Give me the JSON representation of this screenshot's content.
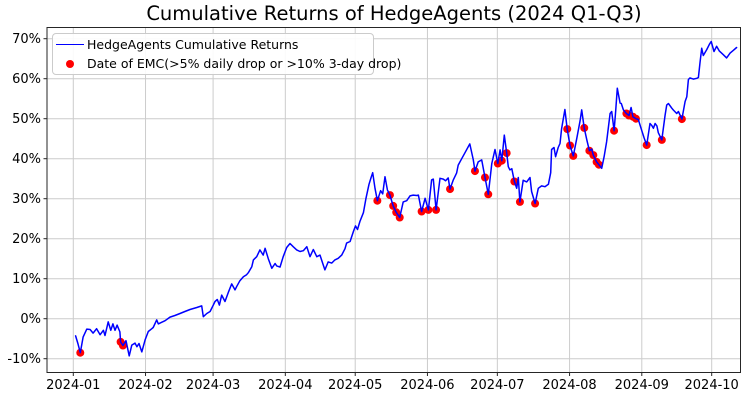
{
  "title": "Cumulative Returns of HedgeAgents (2024 Q1-Q3)",
  "legend": {
    "items": [
      {
        "label": "HedgeAgents Cumulative Returns",
        "type": "line",
        "color": "#0000ff"
      },
      {
        "label": "Date of EMC(>5% daily drop or >10% 3-day drop)",
        "type": "dot",
        "color": "#ff0000"
      }
    ]
  },
  "colors": {
    "line": "#0000ff",
    "marker": "#ff0000",
    "grid": "#cccccc",
    "spine": "#262626",
    "text": "#000000"
  },
  "chart_data": {
    "type": "line",
    "title": "Cumulative Returns of HedgeAgents (2024 Q1-Q3)",
    "x_unit": "days since 2024-01-01",
    "y_unit": "percent",
    "grid": true,
    "legend_position": "upper left",
    "ylim": [
      -13.5,
      72.8
    ],
    "x_ticks": [
      {
        "label": "2024-01",
        "day": 0
      },
      {
        "label": "2024-02",
        "day": 31
      },
      {
        "label": "2024-03",
        "day": 60
      },
      {
        "label": "2024-04",
        "day": 91
      },
      {
        "label": "2024-05",
        "day": 121
      },
      {
        "label": "2024-06",
        "day": 152
      },
      {
        "label": "2024-07",
        "day": 182
      },
      {
        "label": "2024-08",
        "day": 213
      },
      {
        "label": "2024-09",
        "day": 244
      },
      {
        "label": "2024-10",
        "day": 274
      }
    ],
    "y_ticks": [
      {
        "label": "-10%",
        "value": -10
      },
      {
        "label": "0%",
        "value": 0
      },
      {
        "label": "10%",
        "value": 10
      },
      {
        "label": "20%",
        "value": 20
      },
      {
        "label": "30%",
        "value": 30
      },
      {
        "label": "40%",
        "value": 40
      },
      {
        "label": "50%",
        "value": 50
      },
      {
        "label": "60%",
        "value": 60
      },
      {
        "label": "70%",
        "value": 70
      }
    ],
    "series": [
      {
        "name": "HedgeAgents Cumulative Returns",
        "color": "#0000ff",
        "points": [
          [
            1,
            -4.3
          ],
          [
            2,
            -6.3
          ],
          [
            3,
            -8.5
          ],
          [
            4.2,
            -4.6
          ],
          [
            5.8,
            -2.6
          ],
          [
            7.2,
            -2.7
          ],
          [
            8.5,
            -3.6
          ],
          [
            10,
            -2.5
          ],
          [
            11.5,
            -4.0
          ],
          [
            12.9,
            -2.9
          ],
          [
            13.6,
            -4.2
          ],
          [
            15,
            -0.8
          ],
          [
            16.1,
            -2.9
          ],
          [
            17,
            -1.3
          ],
          [
            17.9,
            -2.9
          ],
          [
            18.8,
            -1.6
          ],
          [
            20,
            -3.3
          ],
          [
            20.3,
            -5.8
          ],
          [
            21.3,
            -6.7
          ],
          [
            22.6,
            -5.5
          ],
          [
            24,
            -9.3
          ],
          [
            25.1,
            -6.6
          ],
          [
            26.5,
            -6.1
          ],
          [
            27.3,
            -7.0
          ],
          [
            28.2,
            -6.2
          ],
          [
            29.4,
            -8.3
          ],
          [
            30.8,
            -5.3
          ],
          [
            32.2,
            -3.2
          ],
          [
            33.7,
            -2.5
          ],
          [
            34.3,
            -2.2
          ],
          [
            35.8,
            -0.3
          ],
          [
            36.5,
            -1.3
          ],
          [
            37.9,
            -0.9
          ],
          [
            39.4,
            -0.5
          ],
          [
            41.5,
            0.4
          ],
          [
            43.6,
            0.8
          ],
          [
            45.8,
            1.3
          ],
          [
            47.9,
            1.8
          ],
          [
            50.1,
            2.3
          ],
          [
            53,
            2.8
          ],
          [
            55.1,
            3.2
          ],
          [
            55.8,
            0.5
          ],
          [
            57.3,
            1.3
          ],
          [
            58.7,
            1.8
          ],
          [
            60.1,
            3.4
          ],
          [
            60.8,
            4.3
          ],
          [
            61.8,
            4.8
          ],
          [
            62.7,
            3.4
          ],
          [
            63.7,
            5.9
          ],
          [
            65.1,
            4.3
          ],
          [
            66.5,
            6.5
          ],
          [
            68,
            8.7
          ],
          [
            69.4,
            7.2
          ],
          [
            70.1,
            8.0
          ],
          [
            71.5,
            9.5
          ],
          [
            73,
            10.5
          ],
          [
            74.4,
            11.0
          ],
          [
            75.1,
            11.5
          ],
          [
            76.6,
            13.0
          ],
          [
            77.3,
            14.7
          ],
          [
            78.7,
            15.5
          ],
          [
            80.1,
            17.2
          ],
          [
            81.5,
            15.9
          ],
          [
            82.3,
            17.6
          ],
          [
            83.7,
            15.0
          ],
          [
            85.2,
            12.6
          ],
          [
            86.6,
            13.8
          ],
          [
            87.3,
            13.2
          ],
          [
            88.7,
            12.9
          ],
          [
            90.1,
            15.5
          ],
          [
            91.6,
            17.8
          ],
          [
            93,
            18.8
          ],
          [
            94.4,
            18.0
          ],
          [
            95.9,
            17.2
          ],
          [
            97.3,
            16.8
          ],
          [
            98.7,
            17.0
          ],
          [
            100.2,
            18.0
          ],
          [
            101.6,
            15.5
          ],
          [
            103,
            17.3
          ],
          [
            104.5,
            15.5
          ],
          [
            105.9,
            15.9
          ],
          [
            107.3,
            13.4
          ],
          [
            108,
            12.2
          ],
          [
            109.4,
            14.2
          ],
          [
            110.9,
            13.9
          ],
          [
            112.3,
            14.7
          ],
          [
            113.7,
            15.1
          ],
          [
            115.2,
            15.9
          ],
          [
            116.6,
            17.5
          ],
          [
            117.3,
            18.9
          ],
          [
            118.8,
            19.3
          ],
          [
            120.2,
            21.8
          ],
          [
            121.1,
            23.2
          ],
          [
            122,
            22.3
          ],
          [
            123,
            24.3
          ],
          [
            124.5,
            26.5
          ],
          [
            125.6,
            30.0
          ],
          [
            126.9,
            33.6
          ],
          [
            127.8,
            35.3
          ],
          [
            128.5,
            36.5
          ],
          [
            129.5,
            32.6
          ],
          [
            130.5,
            29.5
          ],
          [
            131.9,
            32.0
          ],
          [
            132.8,
            31.2
          ],
          [
            133.8,
            35.5
          ],
          [
            134.8,
            32.2
          ],
          [
            135.9,
            30.9
          ],
          [
            137.3,
            28.2
          ],
          [
            138.6,
            26.6
          ],
          [
            140.1,
            25.3
          ],
          [
            141.6,
            29.2
          ],
          [
            143.1,
            29.5
          ],
          [
            144.5,
            30.7
          ],
          [
            145.9,
            30.9
          ],
          [
            147.4,
            30.8
          ],
          [
            148.1,
            30.9
          ],
          [
            149.5,
            26.8
          ],
          [
            151,
            30.1
          ],
          [
            152.4,
            27.2
          ],
          [
            153.8,
            34.7
          ],
          [
            154.5,
            34.9
          ],
          [
            155.7,
            27.2
          ],
          [
            157.4,
            35.1
          ],
          [
            158.8,
            34.9
          ],
          [
            159.8,
            34.5
          ],
          [
            160.9,
            35.2
          ],
          [
            161.7,
            32.4
          ],
          [
            163.1,
            34.7
          ],
          [
            164.5,
            36.4
          ],
          [
            165.2,
            38.4
          ],
          [
            166.7,
            40.0
          ],
          [
            168.1,
            41.5
          ],
          [
            170.2,
            43.7
          ],
          [
            171.7,
            39.7
          ],
          [
            172.4,
            36.9
          ],
          [
            173.8,
            39.2
          ],
          [
            175.3,
            39.7
          ],
          [
            176.7,
            35.3
          ],
          [
            178.1,
            31.1
          ],
          [
            179.6,
            38.8
          ],
          [
            181,
            42.3
          ],
          [
            182.2,
            38.8
          ],
          [
            183.2,
            42.2
          ],
          [
            183.9,
            39.5
          ],
          [
            185,
            45.9
          ],
          [
            186,
            41.4
          ],
          [
            186.7,
            38.0
          ],
          [
            187.4,
            37.2
          ],
          [
            188.2,
            37.5
          ],
          [
            189.3,
            34.3
          ],
          [
            190.3,
            32.6
          ],
          [
            191,
            35.3
          ],
          [
            191.7,
            29.2
          ],
          [
            193.1,
            34.6
          ],
          [
            194.6,
            34.2
          ],
          [
            196,
            35.3
          ],
          [
            196.7,
            31.8
          ],
          [
            198.2,
            28.8
          ],
          [
            199.6,
            32.6
          ],
          [
            201,
            33.2
          ],
          [
            202.4,
            33.0
          ],
          [
            203.9,
            33.6
          ],
          [
            204.9,
            36.5
          ],
          [
            205.3,
            42.3
          ],
          [
            206.3,
            42.8
          ],
          [
            207,
            40.5
          ],
          [
            208.1,
            42.8
          ],
          [
            208.9,
            43.8
          ],
          [
            209.6,
            47.5
          ],
          [
            211,
            52.3
          ],
          [
            212,
            47.4
          ],
          [
            213.2,
            43.3
          ],
          [
            214.6,
            40.7
          ],
          [
            216.1,
            45.1
          ],
          [
            217.5,
            49.5
          ],
          [
            218.2,
            52.2
          ],
          [
            219.3,
            47.7
          ],
          [
            220.5,
            44.5
          ],
          [
            221.5,
            42.0
          ],
          [
            222.5,
            42.4
          ],
          [
            223.2,
            40.9
          ],
          [
            224.6,
            39.2
          ],
          [
            225.6,
            38.5
          ],
          [
            226.8,
            37.6
          ],
          [
            227.8,
            40.5
          ],
          [
            228.9,
            44.2
          ],
          [
            230.4,
            51.3
          ],
          [
            231.1,
            51.8
          ],
          [
            232.1,
            47.0
          ],
          [
            232.8,
            52.0
          ],
          [
            233.5,
            57.6
          ],
          [
            234.7,
            53.9
          ],
          [
            235.2,
            53.8
          ],
          [
            236.1,
            52.2
          ],
          [
            237.4,
            51.3
          ],
          [
            238.5,
            50.8
          ],
          [
            239.4,
            52.8
          ],
          [
            240.2,
            50.5
          ],
          [
            241.5,
            50.0
          ],
          [
            242.5,
            49.8
          ],
          [
            244,
            47.0
          ],
          [
            245,
            45.2
          ],
          [
            246.1,
            43.4
          ],
          [
            247.5,
            48.8
          ],
          [
            248.3,
            48.3
          ],
          [
            249,
            47.6
          ],
          [
            249.7,
            48.8
          ],
          [
            250.5,
            48.2
          ],
          [
            251.1,
            46.5
          ],
          [
            252.6,
            44.7
          ],
          [
            254,
            50.9
          ],
          [
            254.7,
            53.4
          ],
          [
            255.4,
            53.8
          ],
          [
            256.9,
            52.6
          ],
          [
            257.5,
            52.2
          ],
          [
            259,
            51.3
          ],
          [
            259.7,
            51.8
          ],
          [
            261.2,
            49.9
          ],
          [
            262.6,
            54.3
          ],
          [
            263.3,
            55.5
          ],
          [
            264,
            59.8
          ],
          [
            264.7,
            60.2
          ],
          [
            266.1,
            59.9
          ],
          [
            267.6,
            60.1
          ],
          [
            268.3,
            60.3
          ],
          [
            269,
            64.0
          ],
          [
            269.7,
            67.6
          ],
          [
            270.4,
            65.8
          ],
          [
            271.9,
            67.3
          ],
          [
            273,
            68.6
          ],
          [
            273.8,
            69.3
          ],
          [
            275,
            66.8
          ],
          [
            276.1,
            68.1
          ],
          [
            277.3,
            66.9
          ],
          [
            279,
            66.0
          ],
          [
            280.4,
            65.2
          ],
          [
            281.9,
            66.4
          ],
          [
            283.3,
            67.1
          ],
          [
            284.7,
            67.8
          ]
        ]
      }
    ],
    "markers": {
      "name": "Date of EMC(>5% daily drop or >10% 3-day drop)",
      "color": "#ff0000",
      "points": [
        [
          3,
          -8.5
        ],
        [
          20.3,
          -5.8
        ],
        [
          21.3,
          -6.7
        ],
        [
          130.5,
          29.5
        ],
        [
          135.9,
          30.9
        ],
        [
          137.3,
          28.2
        ],
        [
          138.6,
          26.6
        ],
        [
          140.1,
          25.3
        ],
        [
          149.5,
          26.8
        ],
        [
          152.4,
          27.2
        ],
        [
          155.7,
          27.2
        ],
        [
          161.7,
          32.4
        ],
        [
          172.4,
          36.9
        ],
        [
          176.7,
          35.3
        ],
        [
          178.1,
          31.1
        ],
        [
          182.2,
          38.8
        ],
        [
          183.9,
          39.5
        ],
        [
          186,
          41.4
        ],
        [
          189.3,
          34.3
        ],
        [
          191.7,
          29.2
        ],
        [
          198.2,
          28.8
        ],
        [
          212,
          47.4
        ],
        [
          213.2,
          43.3
        ],
        [
          214.6,
          40.7
        ],
        [
          219.3,
          47.7
        ],
        [
          221.5,
          42.0
        ],
        [
          223.2,
          40.9
        ],
        [
          224.6,
          39.2
        ],
        [
          225.6,
          38.5
        ],
        [
          232.1,
          47.0
        ],
        [
          237.4,
          51.3
        ],
        [
          238.5,
          50.8
        ],
        [
          240.2,
          50.5
        ],
        [
          241.5,
          50.0
        ],
        [
          246.1,
          43.4
        ],
        [
          252.6,
          44.7
        ],
        [
          261.2,
          49.9
        ]
      ]
    }
  }
}
